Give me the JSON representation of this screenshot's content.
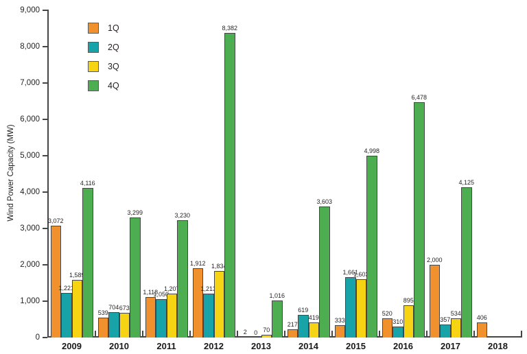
{
  "chart_data": {
    "type": "bar",
    "title": "",
    "ylabel": "Wind Power Capacity (MW)",
    "xlabel": "",
    "ylim": [
      0,
      9000
    ],
    "ytick_interval": 1000,
    "ytick_labels": [
      "0",
      "1,000",
      "2,000",
      "3,000",
      "4,000",
      "5,000",
      "6,000",
      "7,000",
      "8,000",
      "9,000"
    ],
    "grid": false,
    "legend_position": "top-left",
    "categories": [
      "2009",
      "2010",
      "2011",
      "2012",
      "2013",
      "2014",
      "2015",
      "2016",
      "2017",
      "2018"
    ],
    "series": [
      {
        "name": "1Q",
        "color": "#F0912D",
        "values": [
          3072,
          539,
          1118,
          1912,
          2,
          217,
          333,
          520,
          2000,
          406
        ]
      },
      {
        "name": "2Q",
        "color": "#17A3A8",
        "values": [
          1221,
          704,
          1050,
          1213,
          0,
          619,
          1661,
          310,
          357,
          null
        ]
      },
      {
        "name": "3Q",
        "color": "#F6D414",
        "values": [
          1589,
          673,
          1207,
          1834,
          70,
          419,
          1603,
          895,
          534,
          null
        ]
      },
      {
        "name": "4Q",
        "color": "#4DAD51",
        "values": [
          4116,
          3299,
          3230,
          8382,
          1016,
          3603,
          4998,
          6478,
          4125,
          null
        ]
      }
    ],
    "bar_outline_color": "#454545",
    "axis_color": "#454545",
    "text_color": "#231F20"
  }
}
